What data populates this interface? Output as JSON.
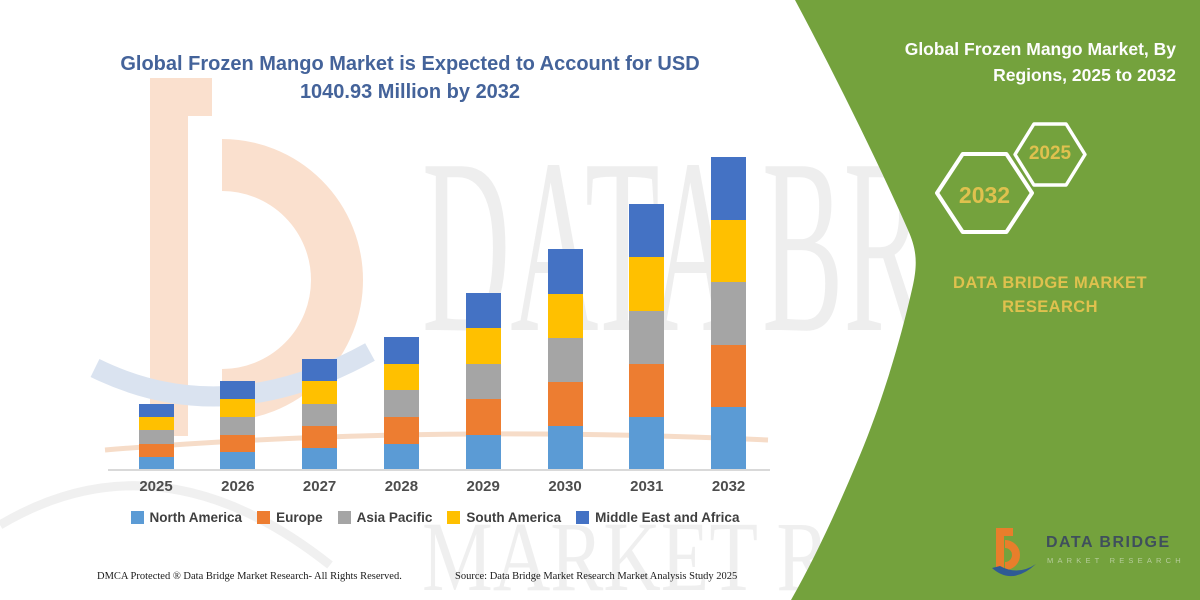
{
  "main_title": {
    "line1": "Global Frozen Mango Market is Expected to Account for USD",
    "line2": "1040.93 Million by 2032"
  },
  "right_panel": {
    "panel_color": "#74A23D",
    "accent_color": "#DFC14E",
    "title_line1": "Global Frozen Mango Market, By",
    "title_line2": "Regions, 2025 to 2032",
    "hexagon_back_label": "2032",
    "hexagon_front_label": "2025",
    "brand_line1": "DATA BRIDGE MARKET",
    "brand_line2": "RESEARCH"
  },
  "watermark": {
    "line1": "DATA BRIDGE",
    "line2": "MARKET RESEARCH"
  },
  "logo": {
    "name": "DATA BRIDGE",
    "subtext": "MARKET RESEARCH",
    "orange": "#E87E2B",
    "blue": "#2F5B94"
  },
  "footer": {
    "left": "DMCA Protected ® Data Bridge Market Research-  All Rights Reserved.",
    "source": "Source: Data Bridge Market Research  Market Analysis Study 2025"
  },
  "chart_data": {
    "type": "bar",
    "stacked": true,
    "title": "Global Frozen Mango Market, By Regions, 2025 to 2032",
    "unit": "USD Million",
    "categories": [
      "2025",
      "2026",
      "2027",
      "2028",
      "2029",
      "2030",
      "2031",
      "2032"
    ],
    "series": [
      {
        "name": "North America",
        "color": "#5B9BD5",
        "values": [
          44,
          59,
          74,
          88,
          118,
          147,
          177,
          208
        ]
      },
      {
        "name": "Europe",
        "color": "#ED7D31",
        "values": [
          44,
          59,
          74,
          89,
          118,
          147,
          177,
          208
        ]
      },
      {
        "name": "Asia Pacific",
        "color": "#A5A5A5",
        "values": [
          44,
          59,
          73,
          88,
          117,
          146,
          176,
          208
        ]
      },
      {
        "name": "South America",
        "color": "#FFC000",
        "values": [
          45,
          60,
          74,
          89,
          118,
          147,
          177,
          208
        ]
      },
      {
        "name": "Middle East and Africa",
        "color": "#4472C4",
        "values": [
          44,
          59,
          74,
          88,
          118,
          147,
          177,
          208.93
        ]
      }
    ],
    "totals": [
      221,
      296,
      369,
      442,
      589,
      734,
      884,
      1040.93
    ],
    "highlight_total_2032": 1040.93,
    "xlabel": "",
    "ylabel": "",
    "y_axis_visible": false,
    "gridlines": false,
    "legend_position": "bottom"
  }
}
